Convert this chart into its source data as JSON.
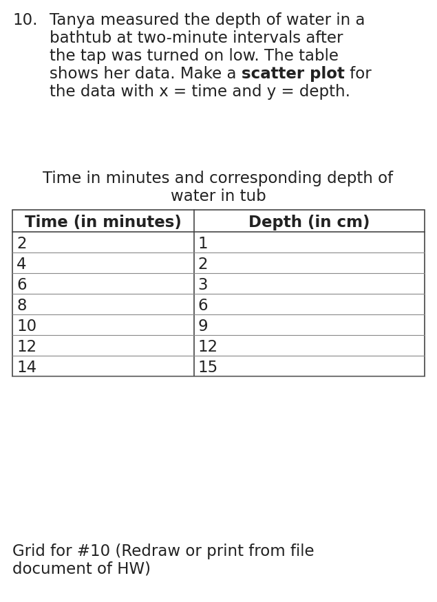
{
  "question_number": "10.",
  "lines": [
    [
      [
        "Tanya measured the depth of water in a",
        false
      ]
    ],
    [
      [
        "bathtub at two-minute intervals after",
        false
      ]
    ],
    [
      [
        "the tap was turned on low. The table",
        false
      ]
    ],
    [
      [
        "shows her data. Make a ",
        false
      ],
      [
        "scatter plot",
        true
      ],
      [
        " for",
        false
      ]
    ],
    [
      [
        "the data with x = time and y = depth.",
        false
      ]
    ]
  ],
  "table_title_line1": "Time in minutes and corresponding depth of",
  "table_title_line2": "water in tub",
  "col_header_1": "Time (in minutes)",
  "col_header_2": "Depth (in cm)",
  "time_data": [
    2,
    4,
    6,
    8,
    10,
    12,
    14
  ],
  "depth_data": [
    1,
    2,
    3,
    6,
    9,
    12,
    15
  ],
  "footer_text_line1": "Grid for #10 (Redraw or print from file",
  "footer_text_line2": "document of HW)",
  "background_color": "#ffffff",
  "text_color": "#222222",
  "font_size": 16.5,
  "font_size_footer": 16.5
}
